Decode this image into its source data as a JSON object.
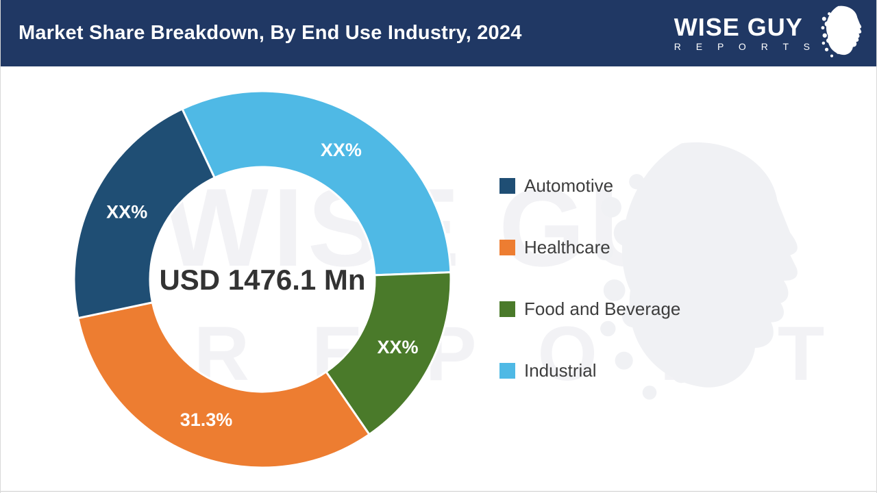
{
  "header": {
    "title": "Market Share Breakdown, By End Use Industry, 2024",
    "logo": {
      "line1": "WISE GUY",
      "line2": "R E P O R T S"
    }
  },
  "watermark": {
    "line1": "WISE GUY",
    "line2": "R E P O R T S"
  },
  "chart_data": {
    "type": "pie",
    "subtype": "donut",
    "title": "Market Share Breakdown, By End Use Industry, 2024",
    "center_label": "USD 1476.1 Mn",
    "start_angle_deg": -25.2,
    "clockwise": true,
    "segments": [
      {
        "name": "Industrial",
        "value_pct": 31.4,
        "label": "XX%",
        "color": "#4fb9e5"
      },
      {
        "name": "Food and Beverage",
        "value_pct": 16.0,
        "label": "XX%",
        "color": "#4a7a2a"
      },
      {
        "name": "Healthcare",
        "value_pct": 31.3,
        "label": "31.3%",
        "color": "#ed7d31"
      },
      {
        "name": "Automotive",
        "value_pct": 21.3,
        "label": "XX%",
        "color": "#1f4e74"
      }
    ],
    "legend_position": "right"
  },
  "legend": {
    "items": [
      {
        "label": "Automotive",
        "color": "#1f4e74"
      },
      {
        "label": "Healthcare",
        "color": "#ed7d31"
      },
      {
        "label": "Food and Beverage",
        "color": "#4a7a2a"
      },
      {
        "label": "Industrial",
        "color": "#4fb9e5"
      }
    ]
  },
  "colors": {
    "header_bg": "#203864",
    "title_text": "#ffffff",
    "center_text": "#333333",
    "slice_label_text": "#ffffff",
    "legend_text": "#3d3d3d",
    "watermark": "#f2f2f5",
    "border": "#cccccc"
  }
}
